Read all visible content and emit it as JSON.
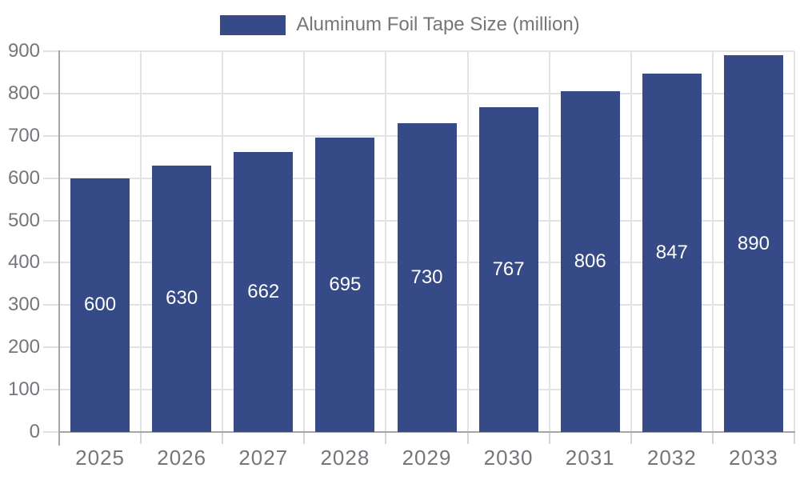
{
  "legend": {
    "items": [
      {
        "label": "Aluminum Foil Tape Size (million)",
        "color": "#364a87"
      }
    ]
  },
  "chart_data": {
    "type": "bar",
    "title": "Aluminum Foil Tape Size (million)",
    "series_name": "Aluminum Foil Tape Size (million)",
    "categories": [
      "2025",
      "2026",
      "2027",
      "2028",
      "2029",
      "2030",
      "2031",
      "2032",
      "2033"
    ],
    "values": [
      600,
      630,
      662,
      695,
      730,
      767,
      806,
      847,
      890
    ],
    "xlabel": "",
    "ylabel": "",
    "ylim": [
      0,
      900
    ],
    "ytick_step": 100,
    "yticks": [
      0,
      100,
      200,
      300,
      400,
      500,
      600,
      700,
      800,
      900
    ],
    "grid": true,
    "legend_position": "top-center",
    "bar_label_position": "inside-center",
    "colors": {
      "bar": "#364a87",
      "bar_label": "#ffffff",
      "axis_text": "#75767c",
      "grid_line": "#e3e3e6",
      "axis_line": "#a5a6aa",
      "background": "#ffffff"
    }
  }
}
